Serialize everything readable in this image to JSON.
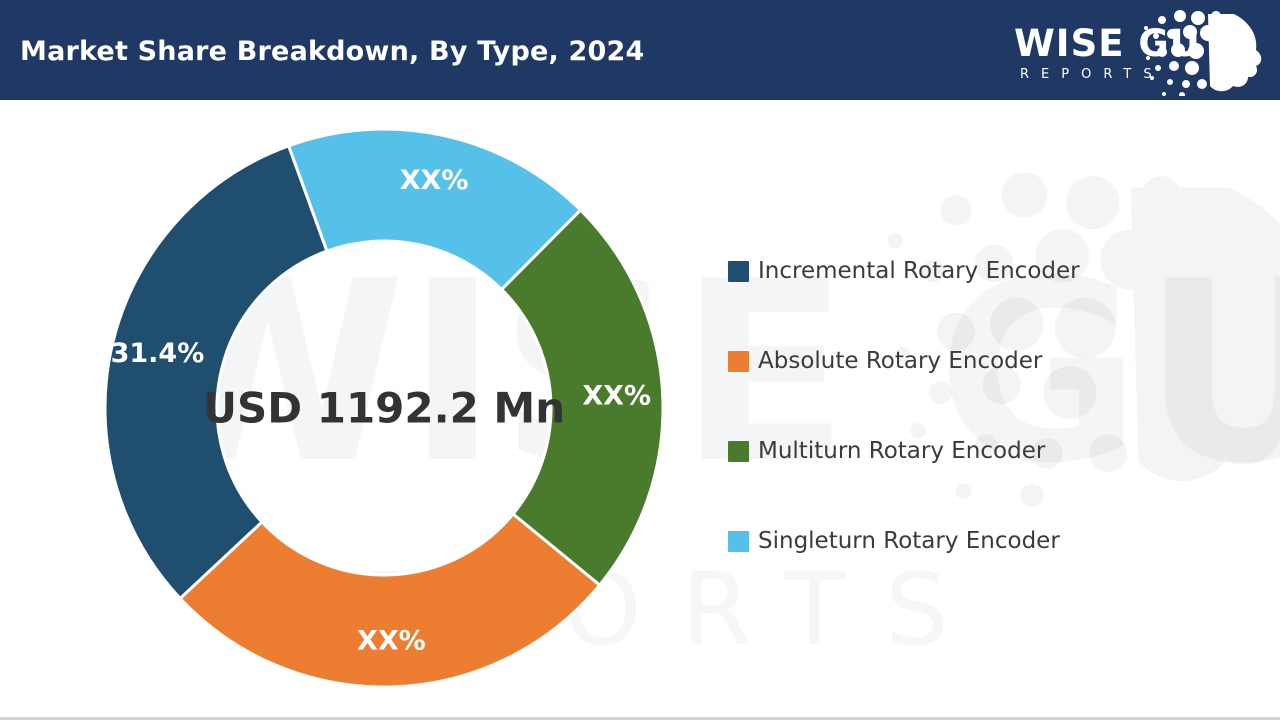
{
  "header": {
    "title": "Market Share Breakdown, By Type, 2024",
    "bg_color": "#1F3864",
    "logo": {
      "line1": "WISE GUY",
      "line2": "REPORTS"
    }
  },
  "watermark": {
    "line1": "WISE GUY",
    "line2": "REPORTS"
  },
  "chart_data": {
    "type": "pie",
    "subtype": "donut",
    "title": "Market Share Breakdown, By Type, 2024",
    "center_label": "USD 1192.2 Mn",
    "categories": [
      "Incremental Rotary Encoder",
      "Absolute Rotary Encoder",
      "Multiturn Rotary Encoder",
      "Singleturn Rotary Encoder"
    ],
    "values": [
      31.4,
      27.1,
      23.5,
      18.0
    ],
    "values_note": "Only the 31.4% slice is labeled numerically; the other slices are masked as XX% in the image, values estimated from arc angles",
    "display_labels": [
      "31.4%",
      "XX%",
      "XX%",
      "XX%"
    ],
    "colors": [
      "#1F4E6F",
      "#ED7D31",
      "#4A7B2C",
      "#55C1E9"
    ],
    "slice_label_color": "#FFFFFF",
    "start_angle_deg": 110,
    "direction": "counterclockwise",
    "legend_position": "right",
    "background": "#FFFFFF"
  }
}
